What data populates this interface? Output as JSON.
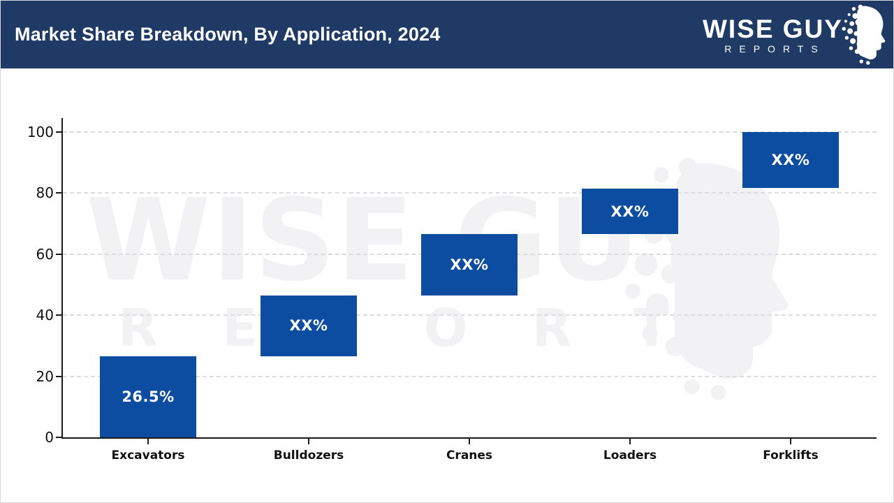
{
  "header": {
    "title": "Market Share Breakdown, By Application, 2024",
    "bg_color": "#203a66",
    "logo": {
      "line1": "WISE GUY",
      "line2": "REPORTS"
    }
  },
  "watermark": {
    "line1": "WISE GUY",
    "line2": "REPORTS"
  },
  "chart_data": {
    "type": "bar",
    "variant": "floating-waterfall",
    "title": "Market Share Breakdown, By Application, 2024",
    "categories": [
      "Excavators",
      "Bulldozers",
      "Cranes",
      "Loaders",
      "Forklifts"
    ],
    "segments": [
      {
        "category": "Excavators",
        "start": 0,
        "end": 26.5,
        "label": "26.5%"
      },
      {
        "category": "Bulldozers",
        "start": 26.5,
        "end": 46.5,
        "label": "XX%"
      },
      {
        "category": "Cranes",
        "start": 46.5,
        "end": 66.5,
        "label": "XX%"
      },
      {
        "category": "Loaders",
        "start": 66.5,
        "end": 81.3,
        "label": "XX%"
      },
      {
        "category": "Forklifts",
        "start": 81.5,
        "end": 100,
        "label": "XX%"
      }
    ],
    "yticks": [
      0,
      20,
      40,
      60,
      80,
      100
    ],
    "ylim": [
      0,
      104.5
    ],
    "xlabel": "",
    "ylabel": "",
    "bar_color": "#0d4da1",
    "bar_label_color": "#ffffff",
    "grid": "horizontal-dashed",
    "grid_color": "#dcdcdc",
    "legend": "none"
  }
}
